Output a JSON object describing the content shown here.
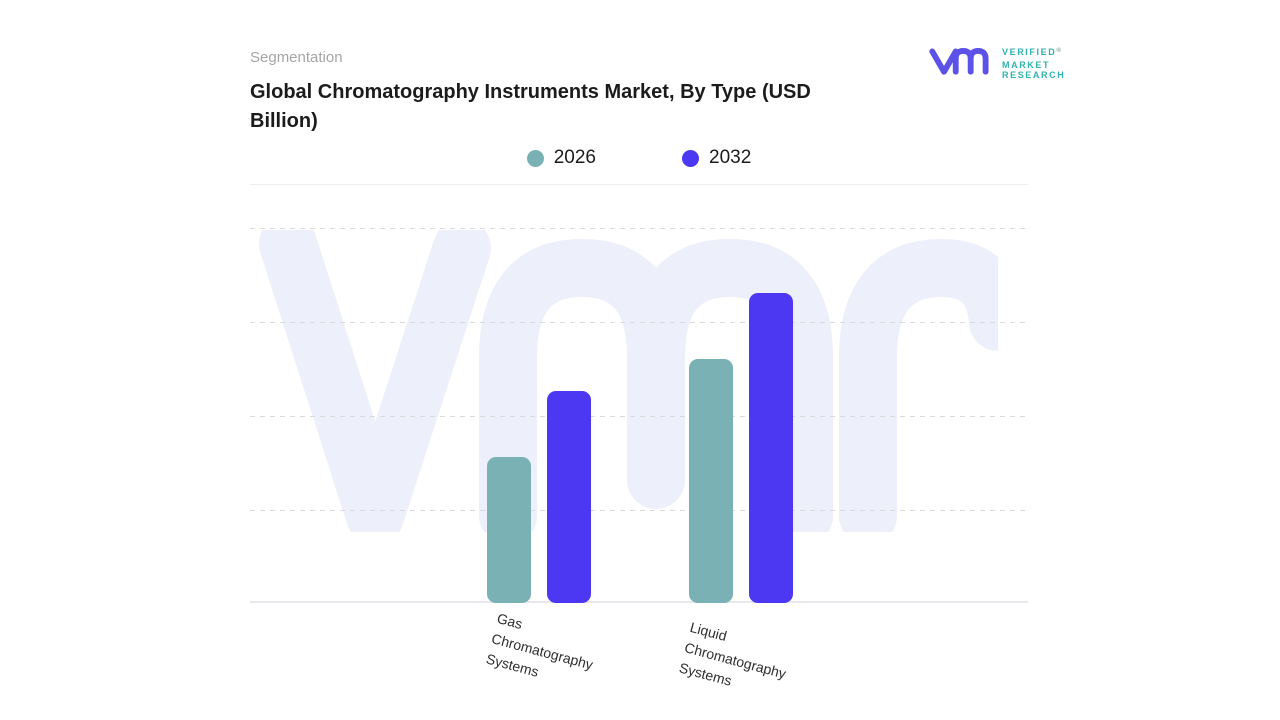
{
  "header": {
    "eyebrow": "Segmentation",
    "title": "Global Chromatography Instruments Market, By Type (USD Billion)"
  },
  "logo": {
    "brand_lines": [
      "VERIFIED",
      "MARKET",
      "RESEARCH"
    ],
    "registered_mark": "®",
    "mark_color": "#5C52E8",
    "text_color": "#2FB3AC"
  },
  "legend": {
    "items": [
      {
        "label": "2026",
        "color": "#79B1B4"
      },
      {
        "label": "2032",
        "color": "#4C38F3"
      }
    ]
  },
  "watermark": {
    "name": "vmr-watermark",
    "color": "#EDEFFA"
  },
  "chart_data": {
    "type": "bar",
    "title": "Global Chromatography Instruments Market, By Type (USD Billion)",
    "unit": "USD Billion",
    "categories": [
      "Gas Chromatography Systems",
      "Liquid Chromatography Systems"
    ],
    "categories_multiline": [
      [
        "Gas",
        "Chromatography",
        "Systems"
      ],
      [
        "Liquid",
        "Chromatography",
        "Systems"
      ]
    ],
    "series": [
      {
        "name": "2026",
        "color": "#79B1B4",
        "values": [
          1.55,
          2.6
        ]
      },
      {
        "name": "2032",
        "color": "#4C38F3",
        "values": [
          2.25,
          3.3
        ]
      }
    ],
    "xlabel": "",
    "ylabel": "",
    "y_axis": {
      "tick_labels_visible": false,
      "gridline_count": 4,
      "value_per_gridline_step": 1,
      "ylim": [
        0,
        4
      ]
    },
    "grid": "dashed-horizontal",
    "legend_position": "top-center",
    "note": "Y axis shows no numeric tick labels; values estimated in gridline units from bar heights."
  }
}
